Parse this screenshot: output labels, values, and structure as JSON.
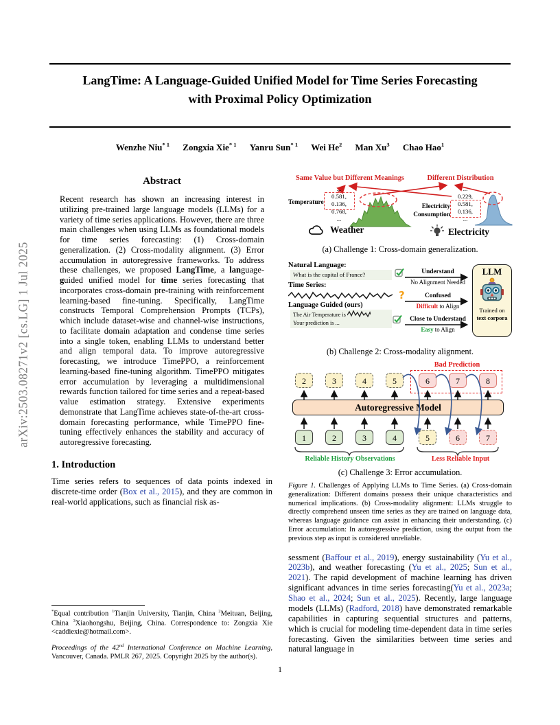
{
  "arxiv_label": "arXiv:2503.08271v2  [cs.LG]  1 Jul 2025",
  "page_number": "1",
  "title": {
    "line1": "LangTime: A Language-Guided Unified Model for Time Series Forecasting",
    "line2": "with Proximal Policy Optimization"
  },
  "authors": [
    {
      "name": "Wenzhe Niu",
      "sup": "* 1"
    },
    {
      "name": "Zongxia Xie",
      "sup": "* 1"
    },
    {
      "name": "Yanru Sun",
      "sup": "* 1"
    },
    {
      "name": "Wei He",
      "sup": "2"
    },
    {
      "name": "Man Xu",
      "sup": "3"
    },
    {
      "name": "Chao Hao",
      "sup": "1"
    }
  ],
  "abstract": {
    "heading": "Abstract",
    "segments": [
      {
        "t": "Recent research has shown an increasing interest in utilizing pre-trained large language models (LLMs) for a variety of time series applications. However, there are three main challenges when using LLMs as foundational models for time series forecasting: (1) Cross-domain generalization. (2) Cross-modality alignment. (3) Error accumulation in autoregressive frameworks. To address these challenges, we proposed "
      },
      {
        "t": "LangTime",
        "s": "b"
      },
      {
        "t": ", a "
      },
      {
        "t": "lan",
        "s": "b"
      },
      {
        "t": "guage-"
      },
      {
        "t": "g",
        "s": "b"
      },
      {
        "t": "uided unified model for "
      },
      {
        "t": "time",
        "s": "b"
      },
      {
        "t": " series forecasting that incorporates cross-domain pre-training with reinforcement learning-based fine-tuning. Specifically, LangTime constructs Temporal Comprehension Prompts (TCPs), which include dataset-wise and channel-wise instructions, to facilitate domain adaptation and condense time series into a single token, enabling LLMs to understand better and align temporal data. To improve autoregressive forecasting, we introduce TimePPO, a reinforcement learning-based fine-tuning algorithm. TimePPO mitigates error accumulation by leveraging a multidimensional rewards function tailored for time series and a repeat-based value estimation strategy. Extensive experiments demonstrate that LangTime achieves state-of-the-art cross-domain forecasting performance, while TimePPO fine-tuning effectively enhances the stability and accuracy of autoregressive forecasting."
      }
    ]
  },
  "intro": {
    "heading": "1. Introduction",
    "segments": [
      {
        "t": "Time series refers to sequences of data points indexed in discrete-time order ("
      },
      {
        "t": "Box et al., 2015",
        "s": "cite"
      },
      {
        "t": "), and they are common in real-world applications, such as financial risk as-"
      }
    ]
  },
  "footnote": {
    "segments": [
      {
        "t": "*",
        "s": "sup"
      },
      {
        "t": "Equal contribution  "
      },
      {
        "t": "1",
        "s": "sup"
      },
      {
        "t": "Tianjin University, Tianjin, China "
      },
      {
        "t": "2",
        "s": "sup"
      },
      {
        "t": "Meituan, Beijing, China "
      },
      {
        "t": "3",
        "s": "sup"
      },
      {
        "t": "Xiaohongshu, Beijing, China. Correspondence to: Zongxia Xie <caddiexie@hotmail.com>."
      }
    ]
  },
  "proceedings": {
    "segments": [
      {
        "t": "Proceedings of the ",
        "s": "i"
      },
      {
        "t": "42",
        "s": "i"
      },
      {
        "t": "nd",
        "s": "isup"
      },
      {
        "t": " International Conference on Machine Learning",
        "s": "i"
      },
      {
        "t": ", Vancouver, Canada. PMLR 267, 2025. Copyright 2025 by the author(s)."
      }
    ]
  },
  "figure1": {
    "a": {
      "label_left": "Same Value but Different Meanings",
      "label_right": "Different Distribution",
      "temp_label": "Temperature",
      "temp_values": [
        "...",
        "0.581,",
        "0.136,",
        "0.768,",
        "..."
      ],
      "elec_label_line1": "Electricity",
      "elec_label_line2": "Consumption",
      "elec_values": [
        "...",
        "0.229,",
        "0.581,",
        "0.136,",
        "..."
      ],
      "weather_label": "Weather",
      "electricity_label": "Electricity",
      "caption": "(a) Challenge 1: Cross-domain generalization."
    },
    "b": {
      "rows": [
        {
          "title": "Natural Language:",
          "content": "What is the capital of France?",
          "top": "Understand",
          "bottom": [
            {
              "t": "No Alignment Needed"
            }
          ]
        },
        {
          "title": "Time Series:",
          "top": "Confused",
          "bottom": [
            {
              "t": "Difficult",
              "s": "red"
            },
            {
              "t": " to Align"
            }
          ]
        },
        {
          "title": "Language Guided (ours)",
          "content_line1": "The Air Temperature is",
          "content_line2": "Your prediction is ...",
          "top": "Close to Understand",
          "bottom": [
            {
              "t": "Easy",
              "s": "green"
            },
            {
              "t": " to Align"
            }
          ]
        }
      ],
      "icon_question": "?",
      "llm": {
        "title": "LLM",
        "trained1": "Trained on",
        "trained2": "text corpora"
      },
      "caption": "(b) Challenge 2: Cross-modality alignment."
    },
    "c": {
      "bad_prediction": "Bad Prediction",
      "top_tokens": [
        "2",
        "3",
        "4",
        "5",
        "6",
        "7",
        "8"
      ],
      "model_label": "Autoregressive Model",
      "bottom_tokens": [
        "1",
        "2",
        "3",
        "4",
        "5",
        "6",
        "7"
      ],
      "label_reliable": "Reliable History Observations",
      "label_less_reliable": "Less Reliable Input",
      "caption": "(c) Challenge 3: Error accumulation."
    },
    "caption_segments": [
      {
        "t": "Figure 1.",
        "s": "i"
      },
      {
        "t": " Challenges of Applying LLMs to Time Series. (a) Cross-domain generalization: Different domains possess their unique characteristics and numerical implications. (b) Cross-modality alignment: LLMs struggle to directly comprehend unseen time series as they are trained on language data, whereas language guidance can assist in enhancing their understanding. (c) Error accumulation: In autoregressive prediction, using the output from the previous step as input is considered unreliable."
      }
    ]
  },
  "body_right": {
    "segments": [
      {
        "t": "sessment ("
      },
      {
        "t": "Baffour et al., 2019",
        "s": "cite"
      },
      {
        "t": "), energy sustainability ("
      },
      {
        "t": "Yu et al., 2023b",
        "s": "cite"
      },
      {
        "t": "), and weather forecasting ("
      },
      {
        "t": "Yu et al., 2025",
        "s": "cite"
      },
      {
        "t": "; "
      },
      {
        "t": "Sun et al., 2021",
        "s": "cite"
      },
      {
        "t": "). The rapid development of machine learning has driven significant advances in time series forecasting("
      },
      {
        "t": "Yu et al., 2023a",
        "s": "cite"
      },
      {
        "t": "; "
      },
      {
        "t": "Shao et al., 2024",
        "s": "cite"
      },
      {
        "t": "; "
      },
      {
        "t": "Sun et al., 2025",
        "s": "cite"
      },
      {
        "t": "). Recently, large language models (LLMs) ("
      },
      {
        "t": "Radford, 2018",
        "s": "cite"
      },
      {
        "t": ") have demonstrated remarkable capabilities in capturing sequential structures and patterns, which is crucial for modeling time-dependent data in time series forecasting. Given the similarities between time series and natural language in"
      }
    ]
  },
  "colors": {
    "citation_blue": "#2540a8",
    "figure_red": "#d01f1f",
    "success_green": "#1e9e3e",
    "warning_orange": "#f5a21b",
    "token_green_bg": "#dcebd1",
    "token_yellow_bg": "#fbf2cb",
    "token_pink_bg": "#fadcda",
    "model_bar_bg": "#fbdfc6",
    "llm_box_bg": "#fcf6da"
  }
}
